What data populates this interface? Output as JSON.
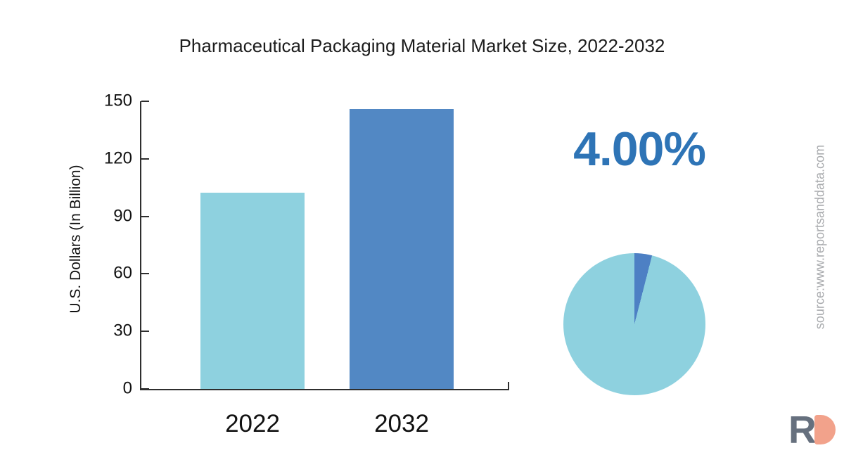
{
  "page": {
    "title": "Pharmaceutical Packaging Material Market Size, 2022-2032"
  },
  "chart_data": [
    {
      "type": "bar",
      "title": "Pharmaceutical Packaging Material Market Size, 2022-2032",
      "categories": [
        "2022",
        "2032"
      ],
      "values": [
        102.5,
        146
      ],
      "xlabel": "",
      "ylabel": "U.S. Dollars (In Billion)",
      "ylim": [
        0,
        150
      ],
      "yticks": [
        0,
        30,
        60,
        90,
        120,
        150
      ],
      "bar_colors": [
        "#8ed1df",
        "#5288c4"
      ],
      "grid": false,
      "legend": "none"
    },
    {
      "type": "pie",
      "labels": [
        "CAGR slice",
        "remainder"
      ],
      "values": [
        4,
        96
      ],
      "colors": [
        "#4d80c4",
        "#8ed1df"
      ],
      "start_angle_deg": 0,
      "direction": "clockwise"
    }
  ],
  "cagr": {
    "value": "4.00%",
    "color": "#2e74b6"
  },
  "source": {
    "text": "source:www.reportsanddata.com"
  },
  "logo": {
    "r": "R",
    "r_color": "#66707e",
    "d_color": "#f2a28b"
  }
}
